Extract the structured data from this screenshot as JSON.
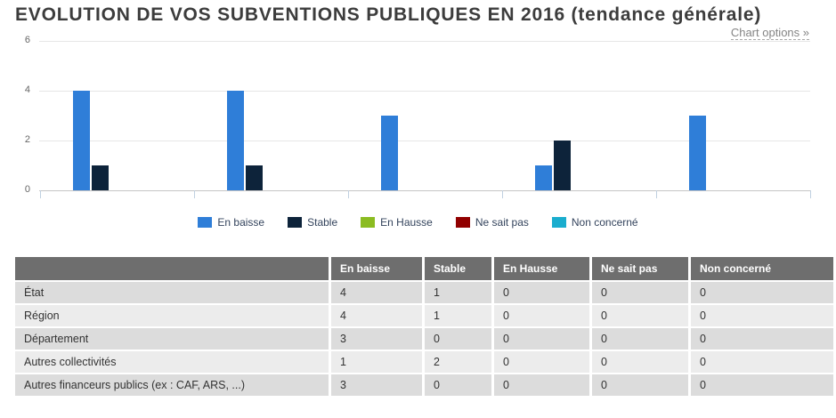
{
  "title": "EVOLUTION DE VOS SUBVENTIONS PUBLIQUES EN 2016 (tendance générale)",
  "chart_options_label": "Chart options »",
  "colors": {
    "en_baisse": "#2f7ed8",
    "stable": "#0d233a",
    "en_hausse": "#8bbc21",
    "ne_sait_pas": "#910000",
    "non_concerne": "#1aadce",
    "grid": "#e6e6e6",
    "axis_line": "#c6c6c6",
    "tick": "#c0d0e0",
    "table_header_bg": "#6e6e6e",
    "row_dark_bg": "#dcdcdc",
    "row_light_bg": "#ececec"
  },
  "chart_data": {
    "type": "bar",
    "title": "EVOLUTION DE VOS SUBVENTIONS PUBLIQUES EN 2016 (tendance générale)",
    "categories": [
      "État",
      "Région",
      "Département",
      "Autres collectivités",
      "Autres financeurs publics (ex : CAF, ARS, ...)"
    ],
    "series": [
      {
        "name": "En baisse",
        "color": "#2f7ed8",
        "values": [
          4,
          4,
          3,
          1,
          3
        ]
      },
      {
        "name": "Stable",
        "color": "#0d233a",
        "values": [
          1,
          1,
          0,
          2,
          0
        ]
      },
      {
        "name": "En Hausse",
        "color": "#8bbc21",
        "values": [
          0,
          0,
          0,
          0,
          0
        ]
      },
      {
        "name": "Ne sait pas",
        "color": "#910000",
        "values": [
          0,
          0,
          0,
          0,
          0
        ]
      },
      {
        "name": "Non concerné",
        "color": "#1aadce",
        "values": [
          0,
          0,
          0,
          0,
          0
        ]
      }
    ],
    "xlabel": "",
    "ylabel": "",
    "ylim": [
      0,
      6
    ],
    "yticks": [
      0,
      2,
      4,
      6
    ],
    "grid": true,
    "legend_position": "bottom",
    "x_tick_labels_visible": false
  },
  "table": {
    "columns": [
      "",
      "En baisse",
      "Stable",
      "En Hausse",
      "Ne sait pas",
      "Non concerné"
    ],
    "rows": [
      {
        "label": "État",
        "values": [
          4,
          1,
          0,
          0,
          0
        ]
      },
      {
        "label": "Région",
        "values": [
          4,
          1,
          0,
          0,
          0
        ]
      },
      {
        "label": "Département",
        "values": [
          3,
          0,
          0,
          0,
          0
        ]
      },
      {
        "label": "Autres collectivités",
        "values": [
          1,
          2,
          0,
          0,
          0
        ]
      },
      {
        "label": "Autres financeurs publics (ex : CAF, ARS, ...)",
        "values": [
          3,
          0,
          0,
          0,
          0
        ]
      }
    ]
  }
}
